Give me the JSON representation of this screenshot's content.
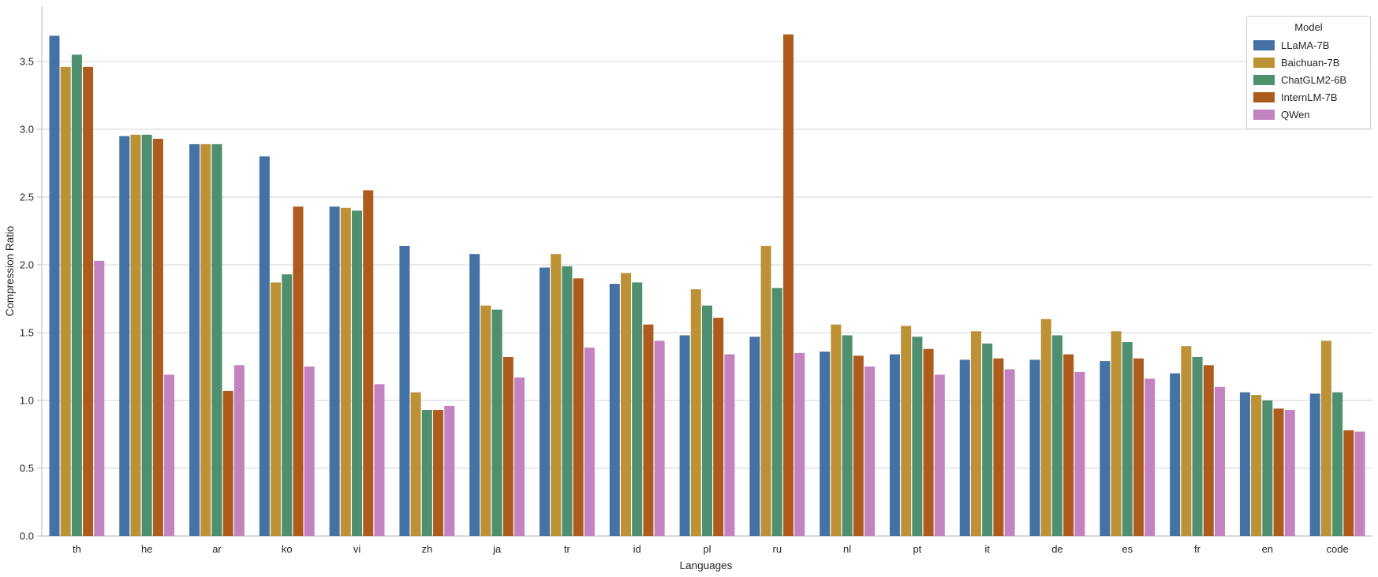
{
  "figure": {
    "background": "#ffffff",
    "text_color": "#262626",
    "grid_color": "#e3e3e3",
    "spine_color": "#cccccc"
  },
  "legend": {
    "title": "Model"
  },
  "chart_data": {
    "type": "bar",
    "title": "",
    "xlabel": "Languages",
    "ylabel": "Compression Ratio",
    "ylim": [
      0.0,
      3.8
    ],
    "yticks": [
      "0.0",
      "0.5",
      "1.0",
      "1.5",
      "2.0",
      "2.5",
      "3.0",
      "3.5"
    ],
    "grid": true,
    "legend_position": "top-right",
    "legend_title": "Model",
    "categories": [
      "th",
      "he",
      "ar",
      "ko",
      "vi",
      "zh",
      "ja",
      "tr",
      "id",
      "pl",
      "ru",
      "nl",
      "pt",
      "it",
      "de",
      "es",
      "fr",
      "en",
      "code"
    ],
    "series": [
      {
        "name": "LLaMA-7B",
        "color": "#4472a4",
        "values": [
          3.69,
          2.95,
          2.89,
          2.8,
          2.43,
          2.14,
          2.08,
          1.98,
          1.86,
          1.48,
          1.47,
          1.36,
          1.34,
          1.3,
          1.3,
          1.29,
          1.2,
          1.06,
          1.05
        ]
      },
      {
        "name": "Baichuan-7B",
        "color": "#bd9237",
        "values": [
          3.46,
          2.96,
          2.89,
          1.87,
          2.42,
          1.06,
          1.7,
          2.08,
          1.94,
          1.82,
          2.14,
          1.56,
          1.55,
          1.51,
          1.6,
          1.51,
          1.4,
          1.04,
          1.44
        ]
      },
      {
        "name": "ChatGLM2-6B",
        "color": "#4d8f6f",
        "values": [
          3.55,
          2.96,
          2.89,
          1.93,
          2.4,
          0.93,
          1.67,
          1.99,
          1.87,
          1.7,
          1.83,
          1.48,
          1.47,
          1.42,
          1.48,
          1.43,
          1.32,
          1.0,
          1.06
        ]
      },
      {
        "name": "InternLM-7B",
        "color": "#ad5c1e",
        "values": [
          3.46,
          2.93,
          1.07,
          2.43,
          2.55,
          0.93,
          1.32,
          1.9,
          1.56,
          1.61,
          3.7,
          1.33,
          1.38,
          1.31,
          1.34,
          1.31,
          1.26,
          0.94,
          0.78
        ]
      },
      {
        "name": "QWen",
        "color": "#c283c0",
        "values": [
          2.03,
          1.19,
          1.26,
          1.25,
          1.12,
          0.96,
          1.17,
          1.39,
          1.44,
          1.34,
          1.35,
          1.25,
          1.19,
          1.23,
          1.21,
          1.16,
          1.1,
          0.93,
          0.77
        ]
      }
    ]
  }
}
